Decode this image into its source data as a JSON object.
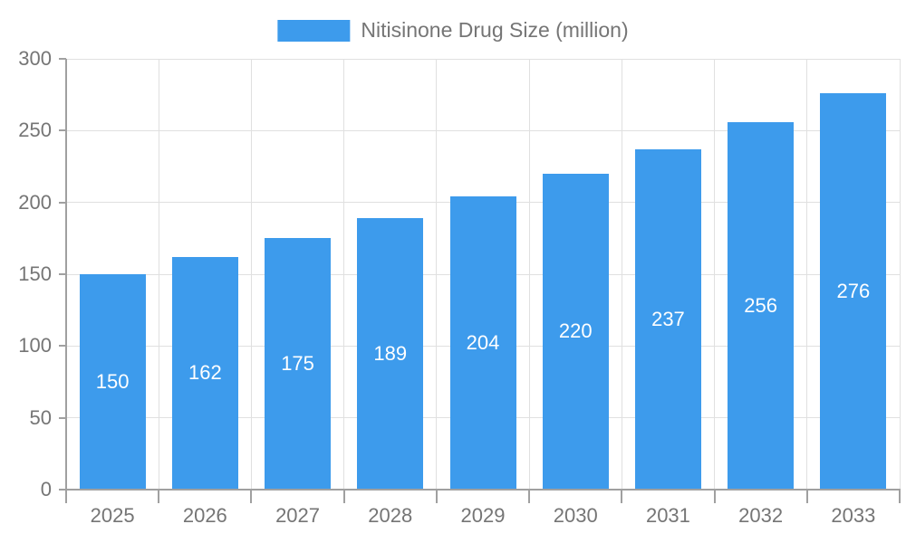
{
  "legend": {
    "label": "Nitisinone Drug Size (million)"
  },
  "chart_data": {
    "type": "bar",
    "title": "",
    "xlabel": "",
    "ylabel": "",
    "categories": [
      "2025",
      "2026",
      "2027",
      "2028",
      "2029",
      "2030",
      "2031",
      "2032",
      "2033"
    ],
    "values": [
      150,
      162,
      175,
      189,
      204,
      220,
      237,
      256,
      276
    ],
    "series": [
      {
        "name": "Nitisinone Drug Size (million)",
        "values": [
          150,
          162,
          175,
          189,
          204,
          220,
          237,
          256,
          276
        ]
      }
    ],
    "bar_value_labels": [
      "150",
      "162",
      "175",
      "189",
      "204",
      "220",
      "237",
      "256",
      "276"
    ],
    "ylim": [
      0,
      300
    ],
    "yticks": [
      0,
      50,
      100,
      150,
      200,
      250,
      300
    ],
    "ytick_labels": [
      "0",
      "50",
      "100",
      "150",
      "200",
      "250",
      "300"
    ],
    "grid": true,
    "legend_position": "top-center",
    "colors": {
      "bar": "#3d9bec",
      "bar_label": "#ffffff",
      "axis_text": "#757575",
      "grid_line": "#e0e0e0",
      "axis_line": "#a0a0a0",
      "background": "#ffffff"
    }
  }
}
